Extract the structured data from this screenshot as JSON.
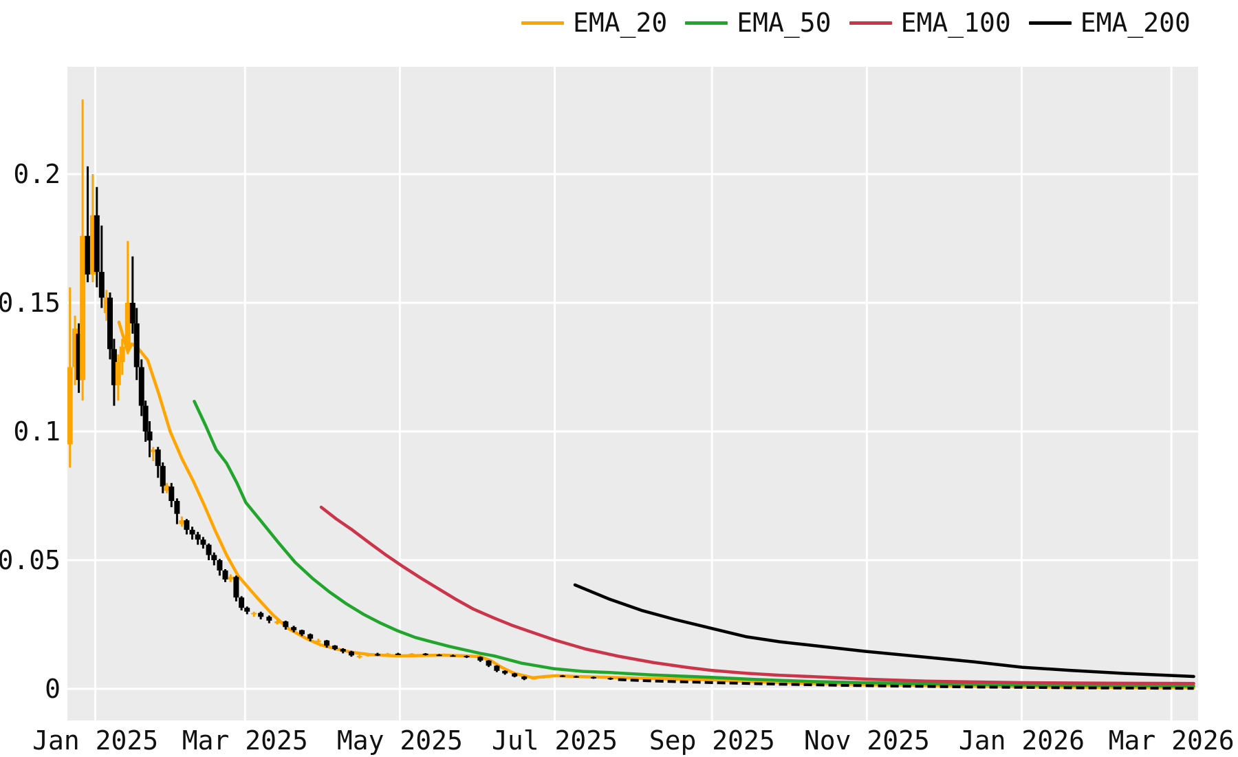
{
  "colors": {
    "figure_bg": "#ffffff",
    "plot_bg": "#ebebeb",
    "grid": "#ffffff",
    "text": "#111111",
    "candle_up": "#ffa500",
    "candle_down": "#000000"
  },
  "chart_data": {
    "type": "candlestick",
    "title": "",
    "xlabel": "",
    "ylabel": "",
    "grid": true,
    "legend_position": "top",
    "x_axis": {
      "tick_labels": [
        "Jan 2025",
        "Mar 2025",
        "May 2025",
        "Jul 2025",
        "Sep 2025",
        "Nov 2025",
        "Jan 2026",
        "Mar 2026"
      ],
      "tick_days": [
        11,
        70,
        131,
        192,
        254,
        315,
        376,
        435
      ],
      "range_days": [
        0,
        445
      ]
    },
    "y_axis": {
      "tick_labels": [
        "0",
        "0.05",
        "0.1",
        "0.15",
        "0.2"
      ],
      "tick_values": [
        0,
        0.05,
        0.1,
        0.15,
        0.2
      ],
      "range": [
        -0.0123,
        0.2417
      ]
    },
    "series": [
      {
        "name": "EMA_20",
        "color": "#ffa500",
        "points": [
          [
            20.3,
            0.1425
          ],
          [
            23.8,
            0.131
          ],
          [
            25.4,
            0.134
          ],
          [
            27.3,
            0.133
          ],
          [
            31.6,
            0.1278
          ],
          [
            36.2,
            0.114
          ],
          [
            40.5,
            0.1
          ],
          [
            45.1,
            0.0895
          ],
          [
            49.7,
            0.0805
          ],
          [
            54.1,
            0.071
          ],
          [
            58.1,
            0.0618
          ],
          [
            62.7,
            0.052
          ],
          [
            67.3,
            0.0439
          ],
          [
            74.3,
            0.0359
          ],
          [
            80.8,
            0.0289
          ],
          [
            87,
            0.0235
          ],
          [
            94.3,
            0.0195
          ],
          [
            99.7,
            0.0171
          ],
          [
            106,
            0.0155
          ],
          [
            112.2,
            0.0142
          ],
          [
            119.5,
            0.0133
          ],
          [
            130.3,
            0.0128
          ],
          [
            141.1,
            0.013
          ],
          [
            148.4,
            0.0131
          ],
          [
            157.3,
            0.0128
          ],
          [
            162.7,
            0.0125
          ],
          [
            166.8,
            0.011
          ],
          [
            170.8,
            0.0085
          ],
          [
            176.2,
            0.006
          ],
          [
            183.5,
            0.0043
          ],
          [
            188.4,
            0.0048
          ],
          [
            192.4,
            0.0051
          ],
          [
            200.5,
            0.0048
          ],
          [
            213.2,
            0.0045
          ],
          [
            230.3,
            0.004
          ],
          [
            253.8,
            0.0035
          ],
          [
            270.8,
            0.0028
          ],
          [
            292.4,
            0.0021
          ],
          [
            319.5,
            0.0016
          ],
          [
            338.4,
            0.0013
          ],
          [
            357.3,
            0.001
          ],
          [
            376.2,
            0.0008
          ],
          [
            405.9,
            0.0006
          ],
          [
            443.8,
            0.0004
          ]
        ]
      },
      {
        "name": "EMA_50",
        "color": "#22a52c",
        "points": [
          [
            50,
            0.1117
          ],
          [
            54.6,
            0.102
          ],
          [
            58.6,
            0.093
          ],
          [
            62.7,
            0.0877
          ],
          [
            66.8,
            0.08
          ],
          [
            70.3,
            0.0724
          ],
          [
            76.2,
            0.0653
          ],
          [
            83,
            0.057
          ],
          [
            89.7,
            0.0492
          ],
          [
            96.5,
            0.043
          ],
          [
            103.2,
            0.0377
          ],
          [
            110,
            0.033
          ],
          [
            116.8,
            0.0289
          ],
          [
            123.5,
            0.0255
          ],
          [
            130.3,
            0.0225
          ],
          [
            137,
            0.02
          ],
          [
            143.8,
            0.0182
          ],
          [
            150.5,
            0.0165
          ],
          [
            157.3,
            0.015
          ],
          [
            162.7,
            0.0138
          ],
          [
            168.1,
            0.0128
          ],
          [
            178.9,
            0.01
          ],
          [
            191.9,
            0.0078
          ],
          [
            203.2,
            0.0068
          ],
          [
            213.2,
            0.0064
          ],
          [
            230.3,
            0.0054
          ],
          [
            253.8,
            0.0045
          ],
          [
            270.8,
            0.0037
          ],
          [
            292.4,
            0.0029
          ],
          [
            319.5,
            0.0023
          ],
          [
            338.4,
            0.002
          ],
          [
            376.2,
            0.0015
          ],
          [
            405.9,
            0.0013
          ],
          [
            443.8,
            0.0011
          ]
        ]
      },
      {
        "name": "EMA_100",
        "color": "#cb3449",
        "points": [
          [
            100,
            0.0706
          ],
          [
            106,
            0.066
          ],
          [
            112.2,
            0.0618
          ],
          [
            118.9,
            0.0568
          ],
          [
            125.7,
            0.0519
          ],
          [
            132.4,
            0.0474
          ],
          [
            139.2,
            0.0431
          ],
          [
            146,
            0.039
          ],
          [
            152.7,
            0.035
          ],
          [
            160,
            0.031
          ],
          [
            168.1,
            0.0275
          ],
          [
            174.9,
            0.0248
          ],
          [
            181.6,
            0.0225
          ],
          [
            191.9,
            0.019
          ],
          [
            204.1,
            0.0155
          ],
          [
            217.6,
            0.0126
          ],
          [
            231.1,
            0.0102
          ],
          [
            244.6,
            0.0083
          ],
          [
            253.8,
            0.0072
          ],
          [
            267.3,
            0.0061
          ],
          [
            280.8,
            0.0053
          ],
          [
            292.4,
            0.0048
          ],
          [
            314.1,
            0.0038
          ],
          [
            338.4,
            0.003
          ],
          [
            376.2,
            0.0024
          ],
          [
            411.4,
            0.0022
          ],
          [
            443.8,
            0.0021
          ]
        ]
      },
      {
        "name": "EMA_200",
        "color": "#000000",
        "points": [
          [
            200,
            0.0404
          ],
          [
            213.2,
            0.035
          ],
          [
            226.2,
            0.0305
          ],
          [
            239.2,
            0.027
          ],
          [
            253.8,
            0.0235
          ],
          [
            267.3,
            0.0203
          ],
          [
            280.8,
            0.0183
          ],
          [
            292.4,
            0.017
          ],
          [
            314.1,
            0.0146
          ],
          [
            338.4,
            0.0123
          ],
          [
            357.3,
            0.0105
          ],
          [
            376.2,
            0.0084
          ],
          [
            395.1,
            0.0072
          ],
          [
            416.8,
            0.006
          ],
          [
            443.8,
            0.0048
          ]
        ]
      }
    ],
    "candles": [
      [
        1,
        0.095,
        0.156,
        0.086,
        0.125
      ],
      [
        3,
        0.125,
        0.145,
        0.118,
        0.14
      ],
      [
        4.5,
        0.138,
        0.142,
        0.115,
        0.12
      ],
      [
        6,
        0.12,
        0.229,
        0.112,
        0.176
      ],
      [
        8,
        0.176,
        0.203,
        0.158,
        0.161
      ],
      [
        10,
        0.161,
        0.2,
        0.158,
        0.184
      ],
      [
        11.6,
        0.184,
        0.195,
        0.156,
        0.162
      ],
      [
        13.5,
        0.162,
        0.18,
        0.148,
        0.152
      ],
      [
        15.4,
        0.146,
        0.155,
        0.143,
        0.152
      ],
      [
        16.8,
        0.152,
        0.154,
        0.128,
        0.132
      ],
      [
        18.4,
        0.132,
        0.136,
        0.11,
        0.118
      ],
      [
        20,
        0.118,
        0.13,
        0.112,
        0.127
      ],
      [
        21.6,
        0.127,
        0.136,
        0.122,
        0.133
      ],
      [
        23.8,
        0.133,
        0.174,
        0.13,
        0.15
      ],
      [
        25.7,
        0.15,
        0.168,
        0.138,
        0.142
      ],
      [
        27.3,
        0.142,
        0.148,
        0.12,
        0.125
      ],
      [
        29.2,
        0.125,
        0.128,
        0.106,
        0.11
      ],
      [
        30.8,
        0.11,
        0.112,
        0.096,
        0.1
      ],
      [
        32.4,
        0.1,
        0.104,
        0.09,
        0.0965
      ],
      [
        33.8,
        0.092,
        0.094,
        0.0885,
        0.093
      ],
      [
        35.7,
        0.093,
        0.094,
        0.082,
        0.0866
      ],
      [
        37.6,
        0.0866,
        0.088,
        0.076,
        0.0786
      ],
      [
        39.2,
        0.077,
        0.08,
        0.076,
        0.079
      ],
      [
        41,
        0.0786,
        0.08,
        0.0706,
        0.073
      ],
      [
        43.2,
        0.073,
        0.074,
        0.064,
        0.068
      ],
      [
        45.1,
        0.064,
        0.067,
        0.063,
        0.0655
      ],
      [
        47,
        0.0655,
        0.066,
        0.06,
        0.0618
      ],
      [
        49.2,
        0.0618,
        0.063,
        0.058,
        0.06
      ],
      [
        51.4,
        0.06,
        0.061,
        0.056,
        0.058
      ],
      [
        53.5,
        0.058,
        0.059,
        0.0545,
        0.056
      ],
      [
        55.7,
        0.056,
        0.0565,
        0.05,
        0.052
      ],
      [
        57.8,
        0.052,
        0.053,
        0.048,
        0.05
      ],
      [
        60,
        0.05,
        0.0505,
        0.044,
        0.046
      ],
      [
        62.2,
        0.046,
        0.0465,
        0.0415,
        0.0425
      ],
      [
        64.3,
        0.0425,
        0.0445,
        0.0415,
        0.0435
      ],
      [
        66.5,
        0.0435,
        0.044,
        0.034,
        0.0355
      ],
      [
        68.6,
        0.0355,
        0.036,
        0.0305,
        0.0315
      ],
      [
        70.8,
        0.0315,
        0.032,
        0.029,
        0.03
      ],
      [
        73.5,
        0.029,
        0.03,
        0.028,
        0.0295
      ],
      [
        76.2,
        0.0295,
        0.03,
        0.027,
        0.028
      ],
      [
        79.5,
        0.028,
        0.0285,
        0.0255,
        0.0265
      ],
      [
        82.7,
        0.0255,
        0.027,
        0.025,
        0.0262
      ],
      [
        86,
        0.0262,
        0.0265,
        0.023,
        0.024
      ],
      [
        89.2,
        0.024,
        0.0245,
        0.022,
        0.0228
      ],
      [
        92.4,
        0.0228,
        0.023,
        0.0205,
        0.0212
      ],
      [
        95.7,
        0.0212,
        0.0215,
        0.0185,
        0.0195
      ],
      [
        98.9,
        0.0185,
        0.0195,
        0.0178,
        0.0188
      ],
      [
        102.2,
        0.0188,
        0.019,
        0.016,
        0.0168
      ],
      [
        105.4,
        0.0168,
        0.017,
        0.015,
        0.0155
      ],
      [
        108.6,
        0.0155,
        0.0158,
        0.0138,
        0.0145
      ],
      [
        111.9,
        0.0145,
        0.0148,
        0.0125,
        0.013
      ],
      [
        115.1,
        0.0125,
        0.0135,
        0.0118,
        0.0128
      ],
      [
        118.4,
        0.0128,
        0.0138,
        0.0125,
        0.0135
      ],
      [
        122.2,
        0.0135,
        0.014,
        0.0128,
        0.0132
      ],
      [
        126.2,
        0.0132,
        0.014,
        0.013,
        0.0137
      ],
      [
        130.3,
        0.0137,
        0.014,
        0.0132,
        0.0135
      ],
      [
        135.7,
        0.0135,
        0.0139,
        0.0133,
        0.0137
      ],
      [
        141.1,
        0.0137,
        0.0139,
        0.013,
        0.0133
      ],
      [
        146.5,
        0.0133,
        0.0135,
        0.0128,
        0.013
      ],
      [
        151.9,
        0.013,
        0.0133,
        0.0125,
        0.0128
      ],
      [
        157.3,
        0.0128,
        0.013,
        0.012,
        0.0124
      ],
      [
        162.7,
        0.0124,
        0.0126,
        0.0105,
        0.011
      ],
      [
        166,
        0.011,
        0.0112,
        0.0085,
        0.009
      ],
      [
        169.2,
        0.009,
        0.0092,
        0.0065,
        0.007
      ],
      [
        172.4,
        0.007,
        0.0072,
        0.0055,
        0.006
      ],
      [
        176.2,
        0.006,
        0.0062,
        0.0045,
        0.0048
      ],
      [
        180,
        0.0048,
        0.005,
        0.0034,
        0.0038
      ],
      [
        183.8,
        0.0038,
        0.0045,
        0.0036,
        0.0042
      ],
      [
        187.6,
        0.0042,
        0.0052,
        0.004,
        0.005
      ],
      [
        191.4,
        0.005,
        0.0056,
        0.0048,
        0.0052
      ],
      [
        195.1,
        0.0052,
        0.0054,
        0.0046,
        0.0049
      ],
      [
        200.5,
        0.0049,
        0.0051,
        0.0043,
        0.0046
      ],
      [
        207.3,
        0.0046,
        0.0048,
        0.0039,
        0.0042
      ],
      [
        214,
        0.0042,
        0.0044,
        0.0035,
        0.0038
      ]
    ],
    "price_tail": [
      [
        217,
        0.0036
      ],
      [
        222,
        0.0034
      ],
      [
        233,
        0.003
      ],
      [
        244,
        0.0027
      ],
      [
        254.6,
        0.0024
      ],
      [
        268,
        0.0021
      ],
      [
        281.6,
        0.0018
      ],
      [
        292.4,
        0.0016
      ],
      [
        308.6,
        0.0013
      ],
      [
        324.9,
        0.0011
      ],
      [
        341.1,
        0.0009
      ],
      [
        357.3,
        0.0007
      ],
      [
        376.2,
        0.0006
      ],
      [
        395.1,
        0.0004
      ],
      [
        419.5,
        0.0003
      ],
      [
        443.8,
        0.0002
      ]
    ]
  }
}
